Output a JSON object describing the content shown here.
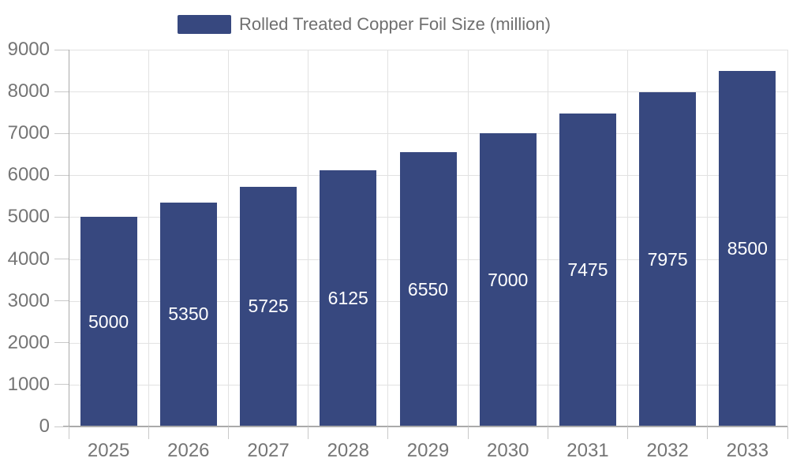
{
  "legend": {
    "label": "Rolled Treated Copper Foil Size (million)"
  },
  "colors": {
    "bar": "#37487F",
    "grid": "#e2e2e2",
    "axis": "#aaaaaa",
    "tick": "#c9c9c9",
    "axis_label_text": "#757575",
    "legend_text": "#6f6f6f",
    "value_label_text": "#ffffff"
  },
  "chart_data": {
    "type": "bar",
    "title": "",
    "xlabel": "",
    "ylabel": "",
    "categories": [
      "2025",
      "2026",
      "2027",
      "2028",
      "2029",
      "2030",
      "2031",
      "2032",
      "2033"
    ],
    "series": [
      {
        "name": "Rolled Treated Copper Foil Size (million)",
        "values": [
          5000,
          5350,
          5725,
          6125,
          6550,
          7000,
          7475,
          7975,
          8500
        ]
      }
    ],
    "data_labels_visible": true,
    "data_label_position": "inside-center",
    "ylim": [
      0,
      9000
    ],
    "ytick_step": 1000,
    "yticks": [
      0,
      1000,
      2000,
      3000,
      4000,
      5000,
      6000,
      7000,
      8000,
      9000
    ],
    "grid": "on",
    "legend_position": "top-center"
  }
}
